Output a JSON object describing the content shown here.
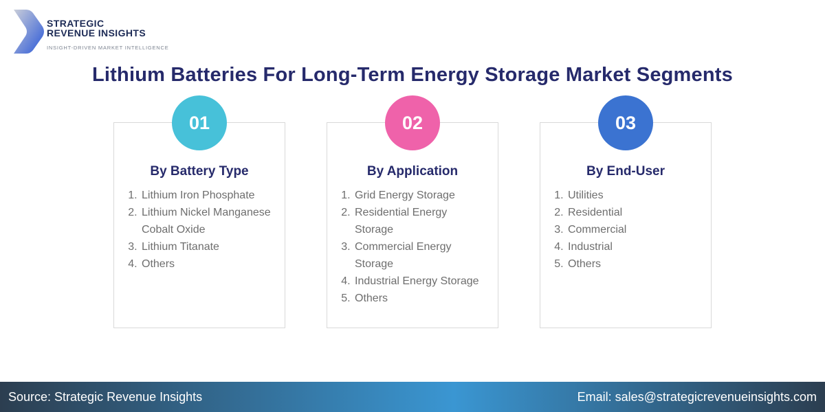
{
  "logo": {
    "line1": "STRATEGIC",
    "line2": "REVENUE INSIGHTS",
    "tagline": "INSIGHT-DRIVEN MARKET INTELLIGENCE"
  },
  "title": "Lithium Batteries For Long-Term Energy Storage Market Segments",
  "cards": [
    {
      "number": "01",
      "badge_color": "#47c1d9",
      "heading": "By Battery Type",
      "items": [
        "Lithium Iron Phosphate",
        "Lithium Nickel Manganese Cobalt Oxide",
        "Lithium Titanate",
        "Others"
      ]
    },
    {
      "number": "02",
      "badge_color": "#ef62aa",
      "heading": "By Application",
      "items": [
        "Grid Energy Storage",
        "Residential Energy Storage",
        "Commercial Energy Storage",
        "Industrial Energy Storage",
        "Others"
      ]
    },
    {
      "number": "03",
      "badge_color": "#3b73d1",
      "heading": "By End-User",
      "items": [
        "Utilities",
        "Residential",
        "Commercial",
        "Industrial",
        "Others"
      ]
    }
  ],
  "footer": {
    "source": "Source: Strategic Revenue Insights",
    "email": "Email: sales@strategicrevenueinsights.com"
  },
  "colors": {
    "heading_navy": "#262a6b",
    "list_gray": "#6e6e6e",
    "card_border": "#d9d9d9",
    "footer_dark": "#2c3e50",
    "footer_blue": "#3a96d2",
    "logo_navy": "#1d2b56",
    "logo_gradient_start": "#c9cdd9",
    "logo_gradient_end": "#2b58d8"
  }
}
